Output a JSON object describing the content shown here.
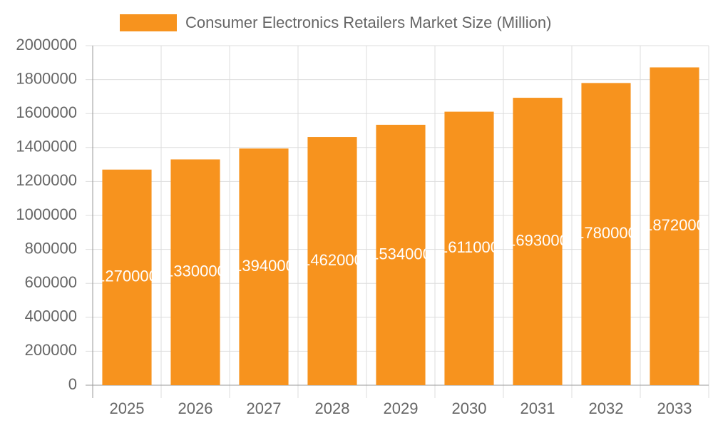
{
  "chart_data": {
    "type": "bar",
    "categories": [
      "2025",
      "2026",
      "2027",
      "2028",
      "2029",
      "2030",
      "2031",
      "2032",
      "2033"
    ],
    "series": [
      {
        "name": "Consumer Electronics Retailers Market Size (Million)",
        "color": "#f7931e",
        "values": [
          1270000,
          1330000,
          1394000,
          1462000,
          1534000,
          1611000,
          1693000,
          1780000,
          1872000
        ]
      }
    ],
    "ylim": [
      0,
      2000000
    ],
    "yticks": [
      0,
      200000,
      400000,
      600000,
      800000,
      1000000,
      1200000,
      1400000,
      1600000,
      1800000,
      2000000
    ],
    "grid": true,
    "legend": "top",
    "data_labels": true
  }
}
